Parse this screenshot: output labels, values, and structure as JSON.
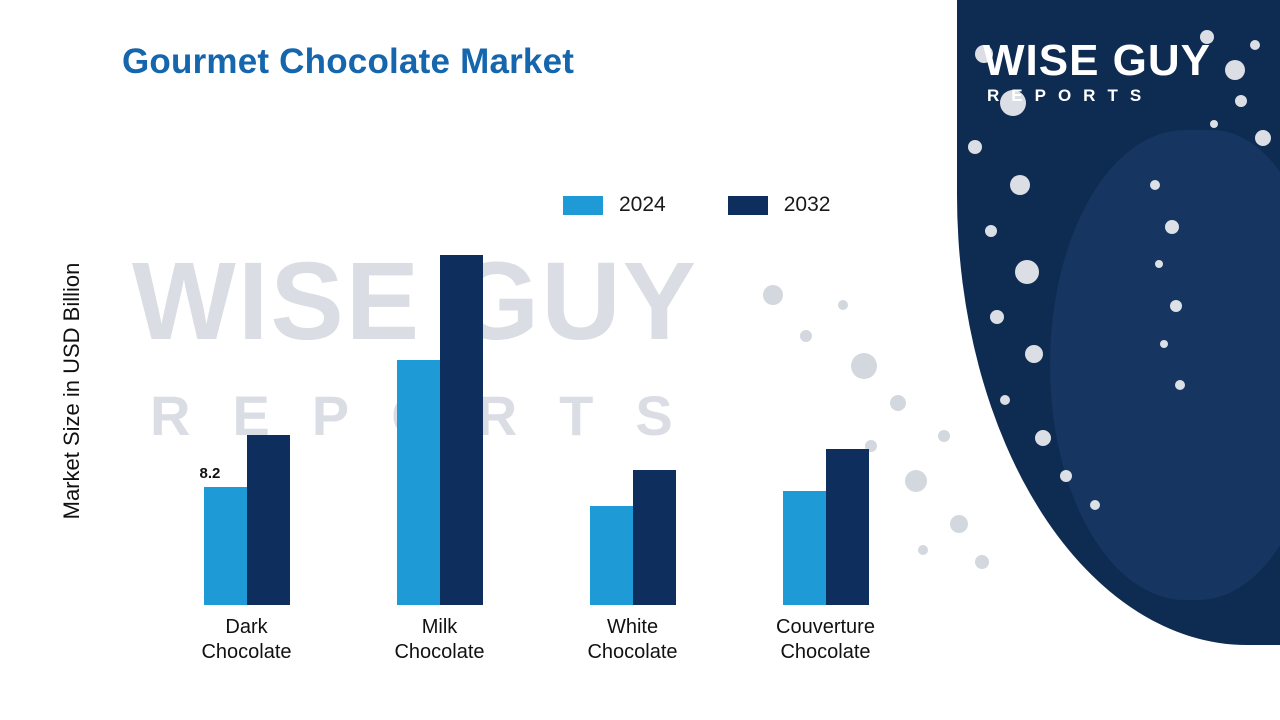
{
  "title": "Gourmet Chocolate Market",
  "watermark": {
    "line1": "WISE GUY",
    "line2": "REPORTS"
  },
  "logo": {
    "line1": "WISE GUY",
    "line2": "REPORTS"
  },
  "colors": {
    "title_blue": "#1566ad",
    "series_2024": "#1e9bd7",
    "series_2032": "#0e2e5e",
    "panel_navy": "#0e2b52",
    "watermark_gray": "#dadde3"
  },
  "chart_data": {
    "type": "bar",
    "title": "Gourmet Chocolate Market",
    "categories": [
      "Dark Chocolate",
      "Milk Chocolate",
      "White Chocolate",
      "Couverture Chocolate"
    ],
    "series": [
      {
        "name": "2024",
        "color": "#1e9bd7",
        "values": [
          8.2,
          17.0,
          6.9,
          7.9
        ]
      },
      {
        "name": "2032",
        "color": "#0e2e5e",
        "values": [
          11.8,
          24.3,
          9.4,
          10.8
        ]
      }
    ],
    "xlabel": "",
    "ylabel": "Market Size in USD Billion",
    "ylim": [
      0,
      25
    ],
    "grid": false,
    "legend_position": "top",
    "annotations": [
      {
        "series": "2024",
        "category": "Dark Chocolate",
        "text": "8.2"
      }
    ]
  }
}
